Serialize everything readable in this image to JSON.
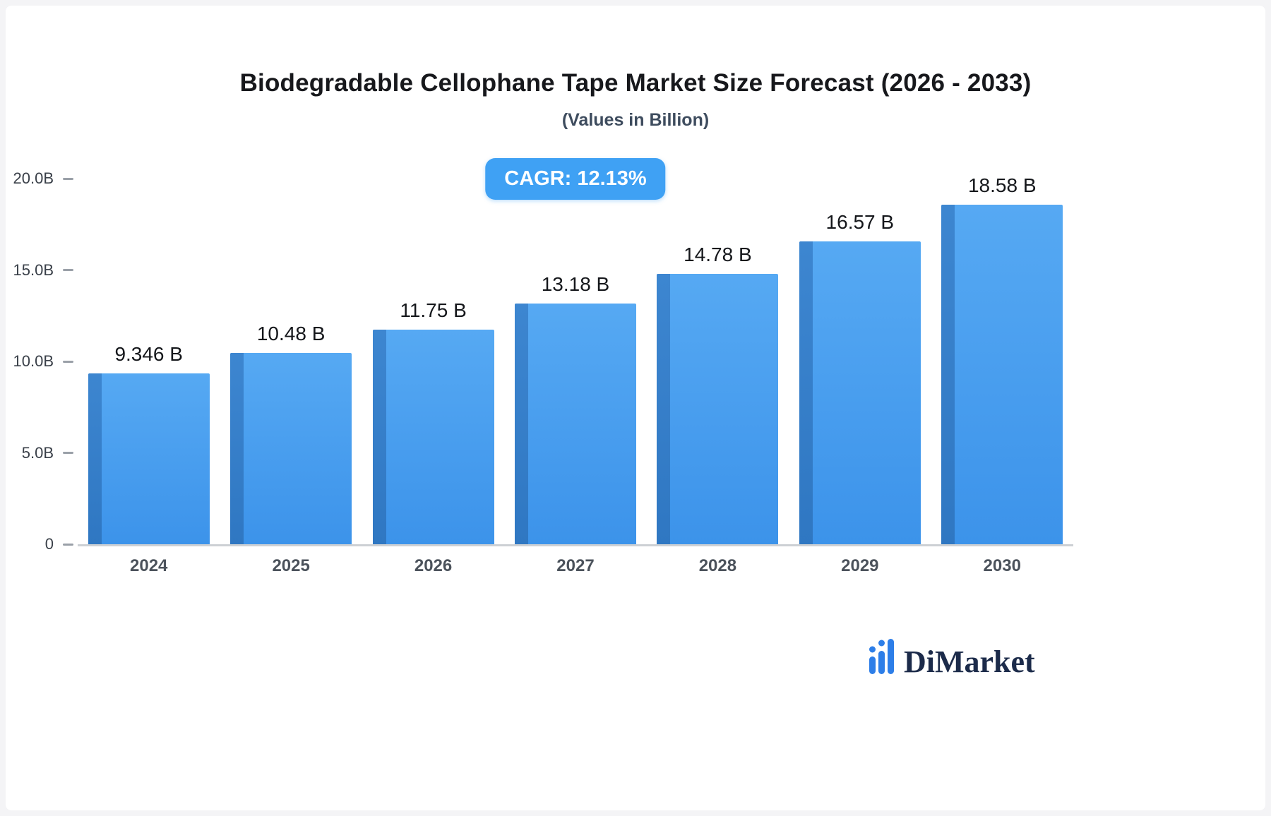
{
  "page": {
    "title": "Biodegradable Cellophane Tape Market Size Forecast (2026 - 2033)",
    "subtitle": "(Values in Billion)",
    "cagr_badge": "CAGR: 12.13%"
  },
  "brand": {
    "name": "DiMarket"
  },
  "colors": {
    "bar_fill_top": "#56a9f3",
    "bar_fill_bottom": "#3c93ea",
    "bar_edge_dark": "#2f77c2",
    "badge_bg": "#3fa1f4",
    "brand_text": "#1c2b4a",
    "brand_icon": "#2d7ee8",
    "baseline": "#cdd0d4",
    "tick_text": "#3a4049"
  },
  "chart_data": {
    "type": "bar",
    "title": "Biodegradable Cellophane Tape Market Size Forecast (2026 - 2033)",
    "subtitle": "(Values in Billion)",
    "categories": [
      "2024",
      "2025",
      "2026",
      "2027",
      "2028",
      "2029",
      "2030"
    ],
    "values": [
      9.346,
      10.48,
      11.75,
      13.18,
      14.78,
      16.57,
      18.58
    ],
    "value_labels": [
      "9.346 B",
      "10.48 B",
      "11.75 B",
      "13.18 B",
      "14.78 B",
      "16.57 B",
      "18.58 B"
    ],
    "ylabel": "",
    "xlabel": "",
    "ylim": [
      0,
      20
    ],
    "yticks": [
      {
        "value": 0,
        "label": "0"
      },
      {
        "value": 5,
        "label": "5.0B"
      },
      {
        "value": 10,
        "label": "10.0B"
      },
      {
        "value": 15,
        "label": "15.0B"
      },
      {
        "value": 20,
        "label": "20.0B"
      }
    ],
    "grid": false,
    "legend": false,
    "annotations": [
      "CAGR: 12.13%"
    ]
  }
}
